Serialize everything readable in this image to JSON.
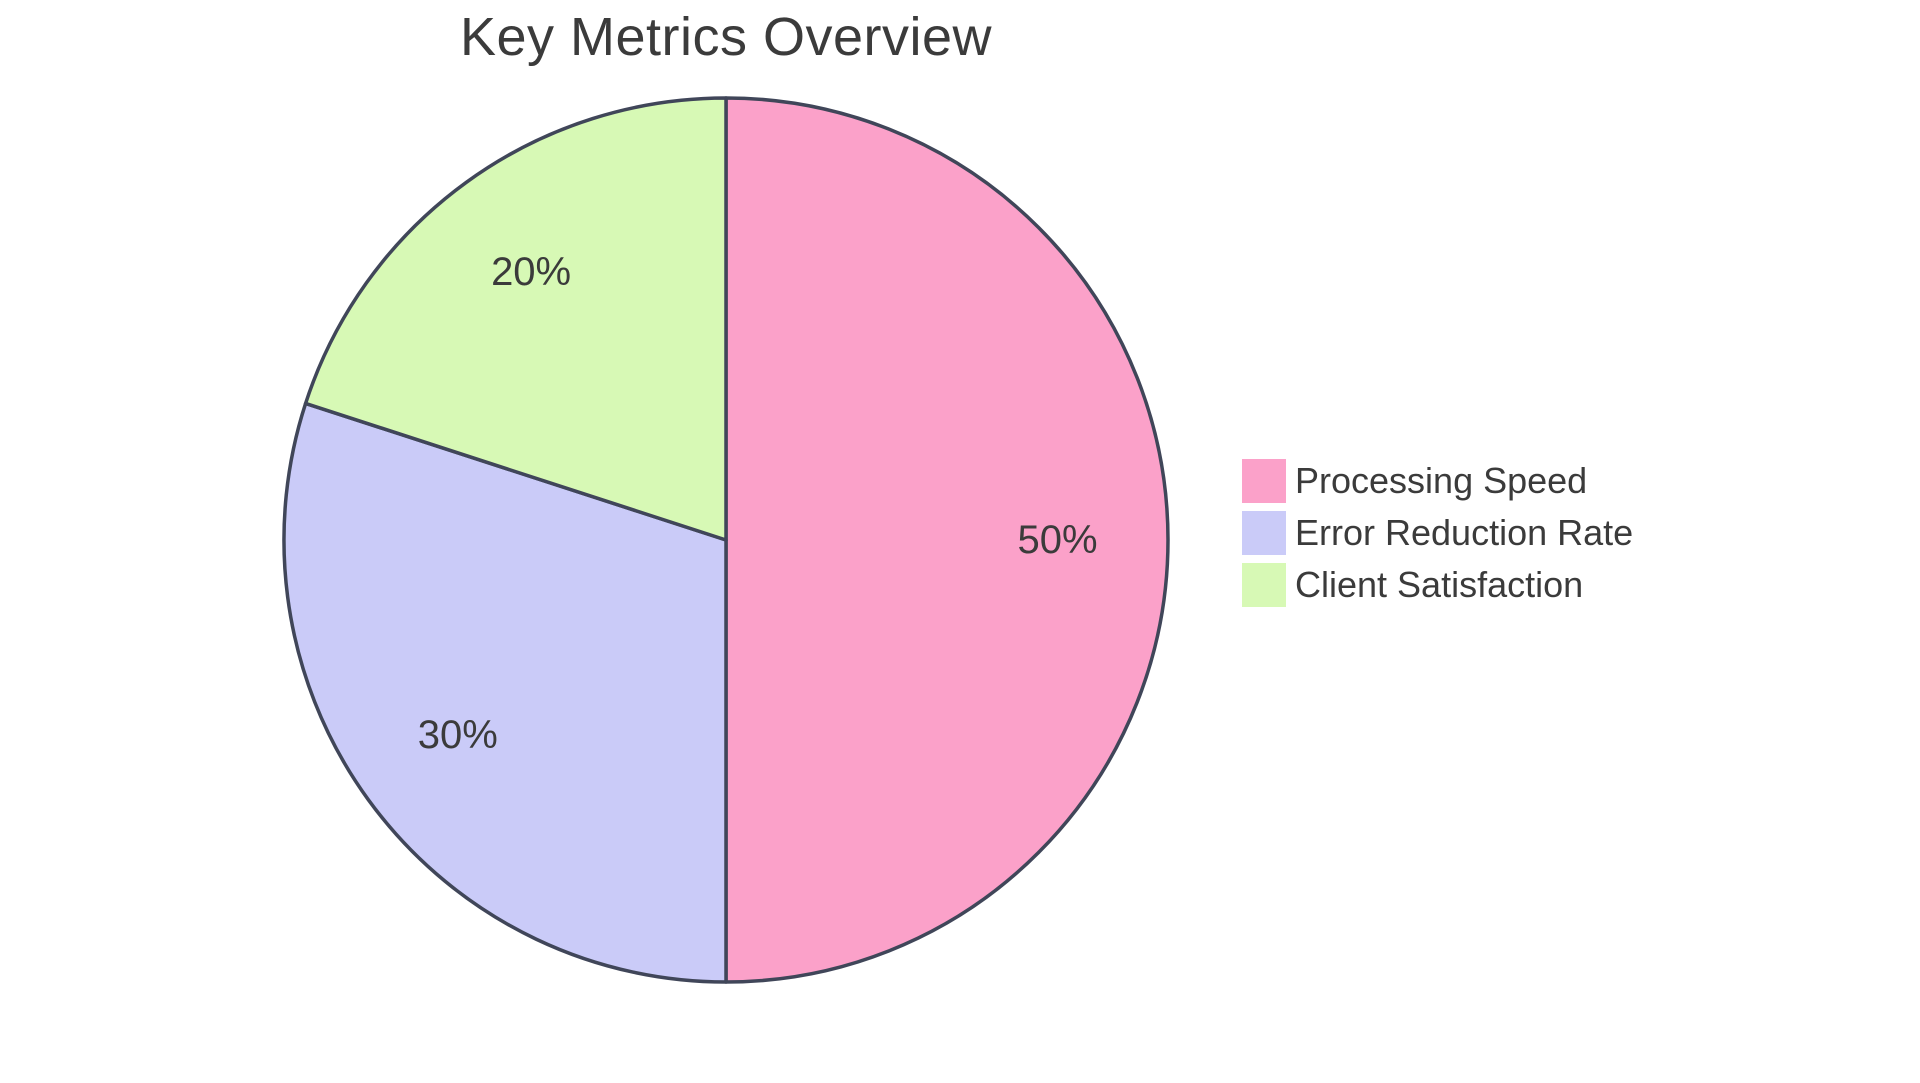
{
  "page": {
    "background": "#ffffff"
  },
  "chart_data": {
    "type": "pie",
    "title": "Key Metrics Overview",
    "series": [
      {
        "label": "Processing Speed",
        "value": 50,
        "pct_label": "50%",
        "color": "#fba1c9"
      },
      {
        "label": "Error Reduction Rate",
        "value": 30,
        "pct_label": "30%",
        "color": "#cacbf8"
      },
      {
        "label": "Client Satisfaction",
        "value": 20,
        "pct_label": "20%",
        "color": "#d7f9b5"
      }
    ],
    "slice_border_color": "#404659",
    "text_color": "#3b3b3b",
    "legend_position": "right",
    "start_angle": "top",
    "direction": "clockwise",
    "labels_inside": true,
    "gridlines": false
  }
}
